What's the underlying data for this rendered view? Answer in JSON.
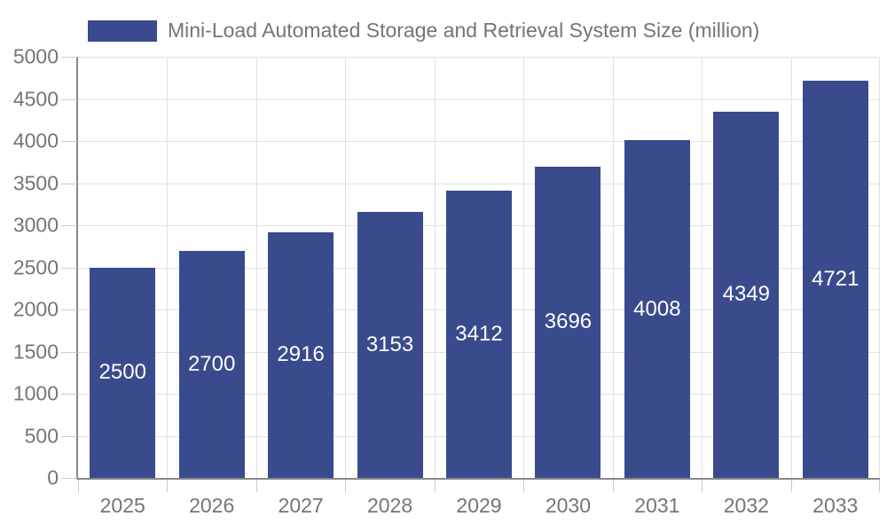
{
  "chart_data": {
    "type": "bar",
    "title": "Mini-Load Automated Storage and Retrieval System Size (million)",
    "categories": [
      "2025",
      "2026",
      "2027",
      "2028",
      "2029",
      "2030",
      "2031",
      "2032",
      "2033"
    ],
    "values": [
      2500,
      2700,
      2916,
      3153,
      3412,
      3696,
      4008,
      4349,
      4721
    ],
    "value_labels": [
      "2500",
      "2700",
      "2916",
      "3153",
      "3412",
      "3696",
      "4008",
      "4349",
      "4721"
    ],
    "xlabel": "",
    "ylabel": "",
    "ylim": [
      0,
      5000
    ],
    "ytick_step": 500,
    "ytick_labels": [
      "0",
      "500",
      "1000",
      "1500",
      "2000",
      "2500",
      "3000",
      "3500",
      "4000",
      "4500",
      "5000"
    ],
    "grid": true,
    "legend_position": "top-left",
    "colors": {
      "bar": "#3A4B8D",
      "value_label": "#FFFFFF",
      "axis_text": "#757575",
      "gridline": "#E0E0E0",
      "axis_line": "#888888",
      "tick": "#CCCCCC"
    }
  }
}
